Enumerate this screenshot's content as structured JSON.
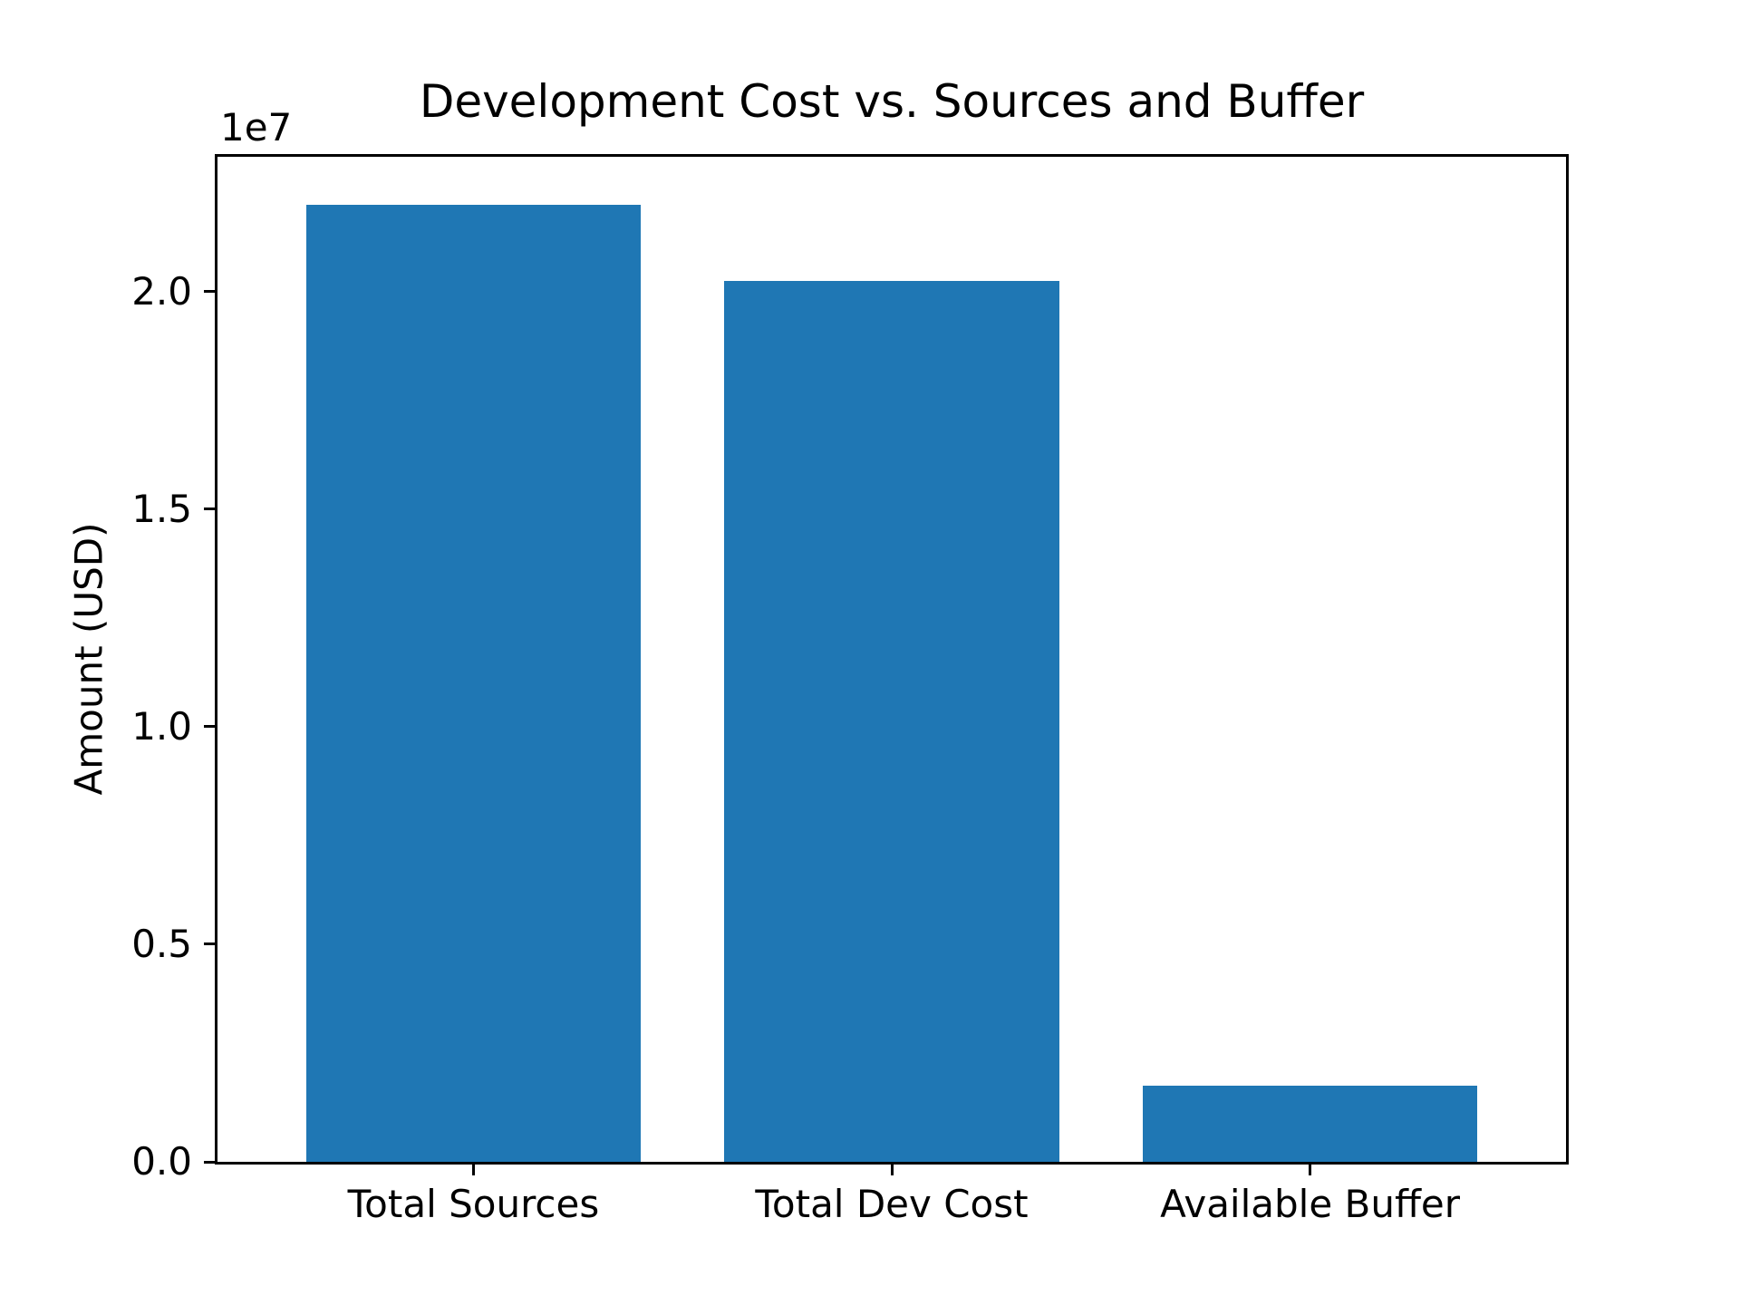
{
  "figure": {
    "title": "Development Cost vs. Sources and Buffer",
    "ylabel": "Amount (USD)",
    "offset_label": "1e7"
  },
  "chart_data": {
    "type": "bar",
    "title": "Development Cost vs. Sources and Buffer",
    "xlabel": "",
    "ylabel": "Amount (USD)",
    "categories": [
      "Total Sources",
      "Total Dev Cost",
      "Available Buffer"
    ],
    "values": [
      22000000,
      20250000,
      1750000
    ],
    "ylim": [
      0,
      23100000
    ],
    "yticks": [
      0,
      5000000,
      10000000,
      15000000,
      20000000
    ],
    "ytick_labels": [
      "0.0",
      "0.5",
      "1.0",
      "1.5",
      "2.0"
    ],
    "y_offset_label": "1e7",
    "bar_color": "#1f77b4",
    "bar_width_fraction": 0.8,
    "grid": false,
    "legend": null
  }
}
